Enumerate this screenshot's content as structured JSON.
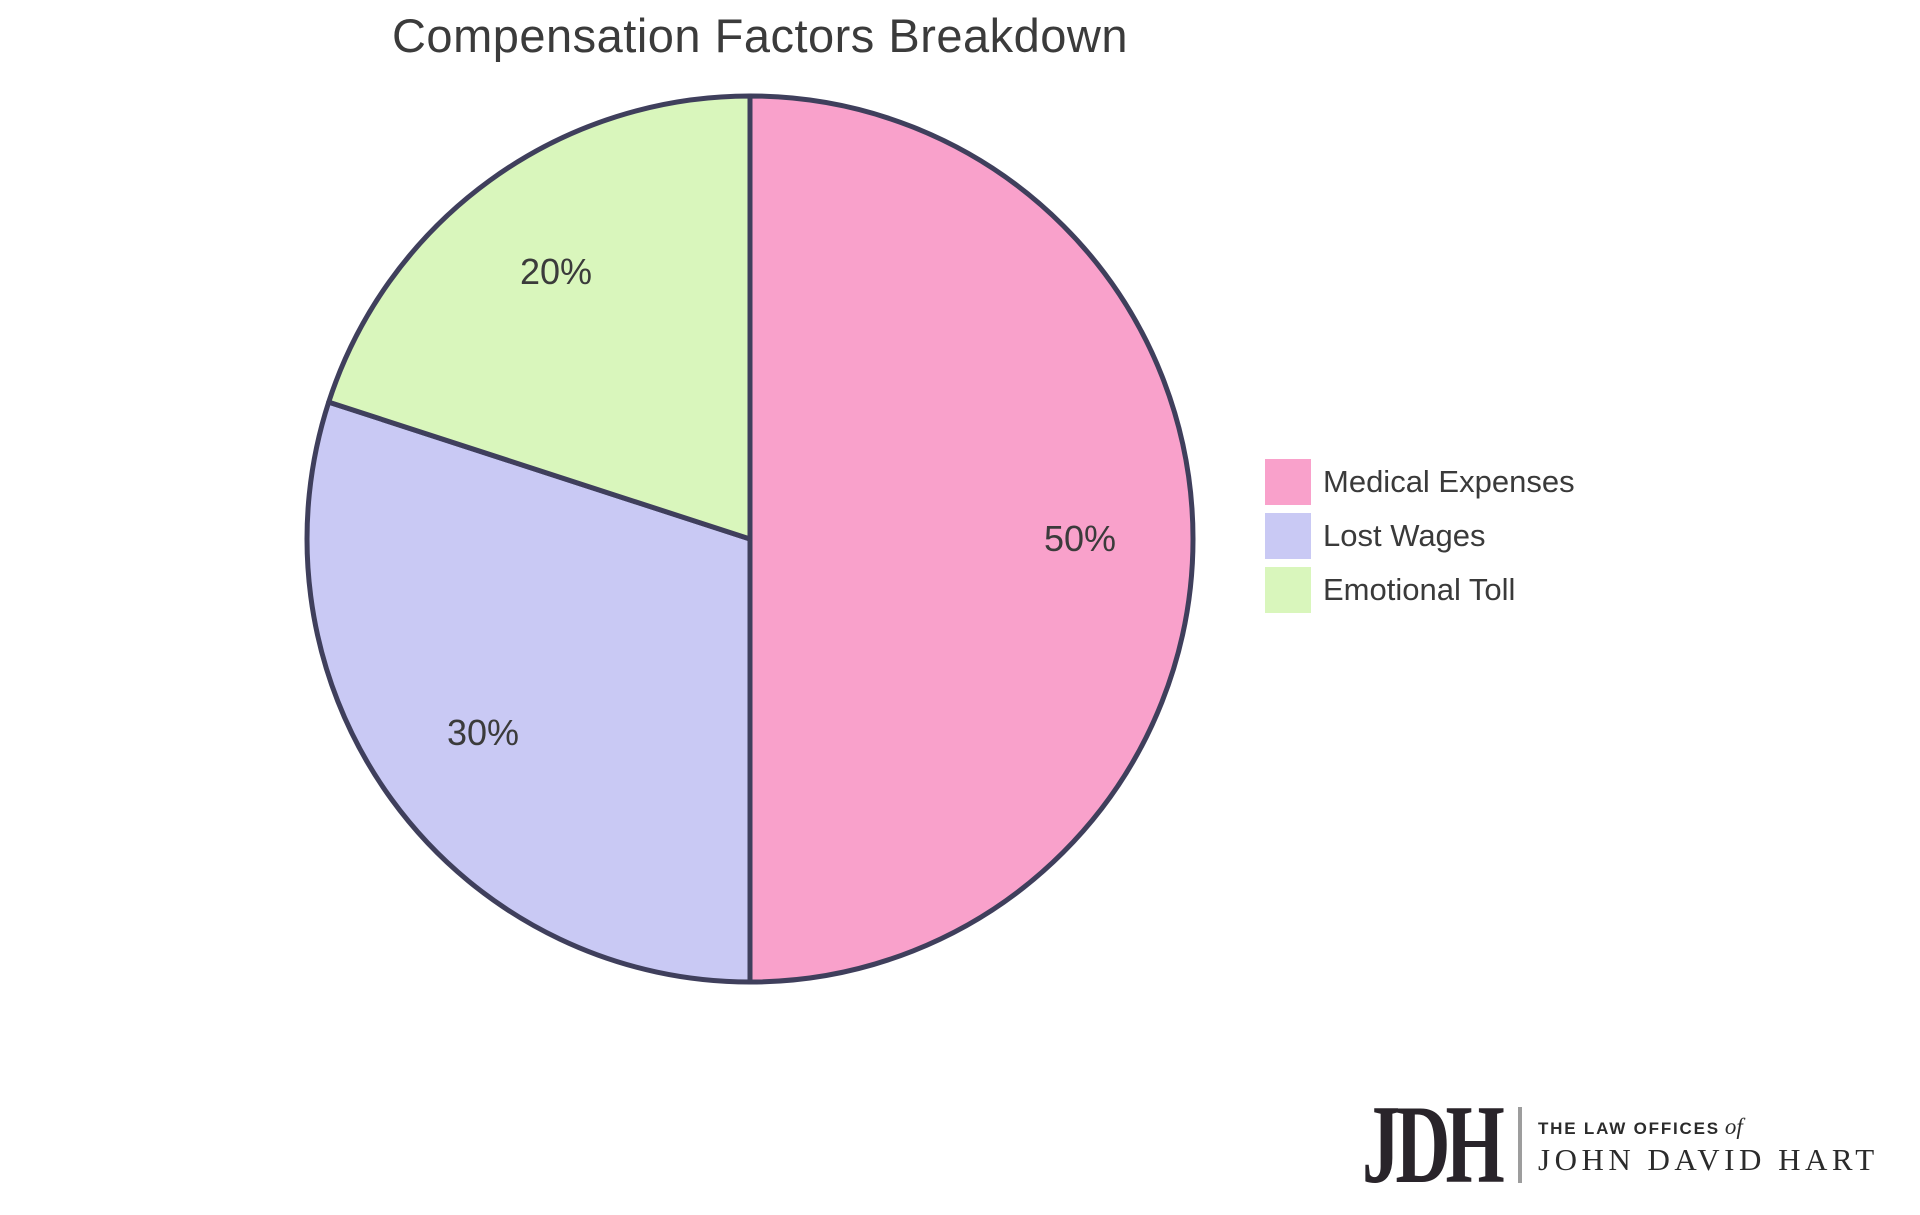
{
  "chart_data": {
    "type": "pie",
    "title": "Compensation Factors Breakdown",
    "categories": [
      "Medical Expenses",
      "Lost Wages",
      "Emotional Toll"
    ],
    "values": [
      50,
      30,
      20
    ],
    "slice_labels": [
      "50%",
      "30%",
      "20%"
    ],
    "colors": [
      "#F9A1CB",
      "#C9C9F4",
      "#D9F6BC"
    ],
    "slice_border_color": "#3F3F5C",
    "label_color": "#3B3B3B",
    "start_angle": "top",
    "direction": "clockwise",
    "legend_position": "right",
    "grid": "off"
  },
  "legend": {
    "items": [
      {
        "label": "Medical Expenses",
        "color": "#F9A1CB"
      },
      {
        "label": "Lost Wages",
        "color": "#C9C9F4"
      },
      {
        "label": "Emotional Toll",
        "color": "#D9F6BC"
      }
    ]
  },
  "branding": {
    "monogram": "JDH",
    "offices_line": "THE LAW OFFICES",
    "offices_of": "of",
    "firm_name": "JOHN DAVID HART"
  }
}
